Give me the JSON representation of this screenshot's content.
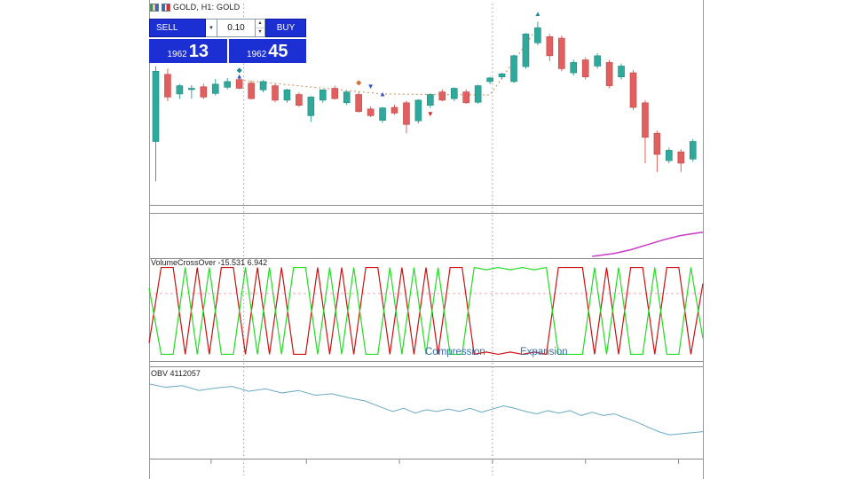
{
  "header": {
    "symbol_title": "GOLD, H1:  GOLD"
  },
  "icons": {
    "left_icon_1": "symbols-grid-icon",
    "left_icon_2": "candlestick-chart-icon"
  },
  "glyphs": {
    "up_arrow": "▲",
    "down_arrow": "▼"
  },
  "trade_panel": {
    "sell_label": "SELL",
    "buy_label": "BUY",
    "volume": "0.10",
    "sell_price": {
      "base": "1962",
      "pips": "13"
    },
    "buy_price": {
      "base": "1962",
      "pips": "45"
    }
  },
  "colors": {
    "bull": "#2fa99c",
    "bull_border": "#20877d",
    "bear": "#e15f5f",
    "bear_border": "#c04848",
    "panel_blue": "#1b2fd2",
    "vc_red": "#cc1111",
    "vc_green": "#22dd22",
    "vc_level": "#e3aebe",
    "obv_blue": "#6aaac8",
    "magenta": "#c93ac9",
    "trendline": "#cf9f6f",
    "annotation_blue": "#3a6fa8",
    "grid_gray": "#8c8c8c",
    "dotted_gray": "#999999"
  },
  "chart_data": [
    {
      "type": "candlestick",
      "symbol": "GOLD",
      "timeframe": "H1",
      "ylim": [
        1939,
        1973
      ],
      "vlines": [
        0.171,
        0.62
      ],
      "time_ticks": [
        0.112,
        0.284,
        0.452,
        0.62,
        0.788,
        0.956
      ],
      "trendline": {
        "style": "dotted",
        "points": [
          [
            7,
            1960.6
          ],
          [
            19,
            1957.9
          ],
          [
            28,
            1957.7
          ],
          [
            32,
            1970.8
          ]
        ]
      },
      "markers": [
        {
          "index": 7,
          "price": 1962.1,
          "glyph": "◆",
          "color": "#17889a"
        },
        {
          "index": 7,
          "price": 1960.9,
          "glyph": "▲",
          "color": "#2d55c8"
        },
        {
          "index": 17,
          "price": 1959.7,
          "glyph": "◆",
          "color": "#cf7030"
        },
        {
          "index": 18,
          "price": 1958.9,
          "glyph": "▼",
          "color": "#2d55c8"
        },
        {
          "index": 19,
          "price": 1957.5,
          "glyph": "▲",
          "color": "#2d55c8"
        },
        {
          "index": 23,
          "price": 1953.6,
          "glyph": "▼",
          "color": "#cc2222"
        },
        {
          "index": 32,
          "price": 1973.0,
          "glyph": "▲",
          "color": "#17889a"
        }
      ],
      "candles": [
        [
          1948.7,
          1963.3,
          1941.0,
          1962.3
        ],
        [
          1961.7,
          1962.8,
          1956.5,
          1957.3
        ],
        [
          1957.9,
          1959.8,
          1956.9,
          1959.5
        ],
        [
          1958.8,
          1959.6,
          1957.0,
          1959.0
        ],
        [
          1959.3,
          1959.9,
          1956.9,
          1957.3
        ],
        [
          1958.0,
          1960.8,
          1957.6,
          1959.8
        ],
        [
          1959.2,
          1961.0,
          1958.8,
          1960.3
        ],
        [
          1960.7,
          1961.3,
          1958.8,
          1959.0
        ],
        [
          1960.0,
          1960.5,
          1956.8,
          1957.0
        ],
        [
          1958.7,
          1960.6,
          1958.2,
          1960.3
        ],
        [
          1959.5,
          1959.9,
          1956.3,
          1956.7
        ],
        [
          1956.7,
          1958.9,
          1956.2,
          1958.7
        ],
        [
          1957.8,
          1958.2,
          1955.4,
          1955.7
        ],
        [
          1953.7,
          1957.5,
          1952.5,
          1957.3
        ],
        [
          1956.7,
          1958.8,
          1956.2,
          1958.7
        ],
        [
          1959.0,
          1959.5,
          1956.8,
          1957.0
        ],
        [
          1956.2,
          1958.5,
          1955.8,
          1958.3
        ],
        [
          1957.8,
          1958.2,
          1954.3,
          1954.5
        ],
        [
          1955.0,
          1955.5,
          1953.4,
          1953.7
        ],
        [
          1952.8,
          1955.4,
          1952.3,
          1955.2
        ],
        [
          1955.3,
          1955.8,
          1953.9,
          1954.2
        ],
        [
          1956.2,
          1956.6,
          1950.3,
          1952.0
        ],
        [
          1952.7,
          1956.9,
          1952.2,
          1956.7
        ],
        [
          1955.7,
          1958.0,
          1955.2,
          1957.8
        ],
        [
          1958.3,
          1958.8,
          1956.5,
          1956.7
        ],
        [
          1957.0,
          1959.2,
          1956.5,
          1959.0
        ],
        [
          1958.3,
          1958.8,
          1956.0,
          1956.2
        ],
        [
          1956.3,
          1959.7,
          1956.0,
          1959.5
        ],
        [
          1960.3,
          1961.2,
          1959.8,
          1961.0
        ],
        [
          1961.2,
          1962.0,
          1960.7,
          1961.8
        ],
        [
          1960.3,
          1965.5,
          1960.0,
          1965.3
        ],
        [
          1963.2,
          1969.7,
          1962.8,
          1969.5
        ],
        [
          1967.8,
          1971.9,
          1967.3,
          1970.7
        ],
        [
          1969.0,
          1969.5,
          1964.3,
          1965.3
        ],
        [
          1968.7,
          1969.2,
          1962.3,
          1962.8
        ],
        [
          1962.0,
          1964.5,
          1961.5,
          1964.0
        ],
        [
          1964.5,
          1965.0,
          1960.7,
          1961.2
        ],
        [
          1963.3,
          1965.8,
          1962.8,
          1965.3
        ],
        [
          1964.0,
          1964.5,
          1959.0,
          1959.5
        ],
        [
          1961.2,
          1963.8,
          1960.7,
          1963.3
        ],
        [
          1962.0,
          1962.5,
          1954.8,
          1955.3
        ],
        [
          1956.2,
          1956.7,
          1944.5,
          1949.5
        ],
        [
          1950.3,
          1950.8,
          1942.8,
          1946.2
        ],
        [
          1945.0,
          1947.5,
          1944.5,
          1947.0
        ],
        [
          1946.7,
          1947.2,
          1942.8,
          1944.5
        ],
        [
          1945.3,
          1949.2,
          1944.8,
          1948.7
        ]
      ]
    },
    {
      "type": "line",
      "name": "upper-indicator-band",
      "color": "#c93ac9",
      "points": [
        [
          0.8,
          1.0
        ],
        [
          0.84,
          0.93
        ],
        [
          0.87,
          0.84
        ],
        [
          0.9,
          0.72
        ],
        [
          0.93,
          0.6
        ],
        [
          0.96,
          0.5
        ],
        [
          1,
          0.42
        ]
      ]
    },
    {
      "type": "line",
      "name": "VolumeCrossOver",
      "values_label": "-15.531 6.942",
      "level": 0.38,
      "annotations": [
        {
          "text": "Compression"
        },
        {
          "text": "Expansion"
        }
      ],
      "series": [
        {
          "name": "down-volume",
          "color": "#cc1111",
          "values": [
            -0.7,
            0.95,
            0.95,
            -0.95,
            0.95,
            -0.95,
            0.95,
            0.95,
            -0.95,
            0.95,
            -0.95,
            0.95,
            -0.95,
            -0.95,
            0.95,
            -0.95,
            0.95,
            -0.95,
            0.95,
            0.95,
            -0.95,
            0.95,
            -0.95,
            0.95,
            -0.95,
            0.95,
            0.95,
            -0.95,
            -0.9,
            -0.95,
            -0.9,
            -0.95,
            -0.9,
            -0.95,
            0.95,
            0.95,
            0.95,
            -0.95,
            0.95,
            -0.95,
            0.95,
            0.95,
            -0.95,
            0.95,
            0.95,
            -0.95,
            0.6
          ]
        },
        {
          "name": "up-volume",
          "color": "#22dd22",
          "values": [
            0.5,
            -0.95,
            -0.95,
            0.95,
            -0.95,
            0.95,
            -0.95,
            -0.95,
            0.95,
            -0.95,
            0.95,
            -0.95,
            0.95,
            0.95,
            -0.95,
            0.95,
            -0.95,
            0.95,
            -0.95,
            -0.95,
            0.95,
            -0.95,
            0.95,
            -0.95,
            0.95,
            -0.95,
            -0.95,
            0.95,
            0.9,
            0.95,
            0.9,
            0.95,
            0.9,
            0.95,
            -0.95,
            -0.95,
            -0.95,
            0.95,
            -0.95,
            0.95,
            -0.95,
            -0.95,
            0.95,
            -0.95,
            -0.95,
            0.95,
            -0.6
          ]
        }
      ]
    },
    {
      "type": "line",
      "name": "OBV",
      "value": "4112057",
      "color": "#6aaac8",
      "points": [
        [
          0,
          0.12
        ],
        [
          0.03,
          0.16
        ],
        [
          0.06,
          0.14
        ],
        [
          0.09,
          0.2
        ],
        [
          0.12,
          0.17
        ],
        [
          0.15,
          0.15
        ],
        [
          0.18,
          0.21
        ],
        [
          0.21,
          0.18
        ],
        [
          0.24,
          0.23
        ],
        [
          0.27,
          0.2
        ],
        [
          0.3,
          0.26
        ],
        [
          0.33,
          0.24
        ],
        [
          0.36,
          0.29
        ],
        [
          0.39,
          0.33
        ],
        [
          0.42,
          0.41
        ],
        [
          0.44,
          0.46
        ],
        [
          0.46,
          0.42
        ],
        [
          0.48,
          0.48
        ],
        [
          0.5,
          0.44
        ],
        [
          0.52,
          0.46
        ],
        [
          0.54,
          0.43
        ],
        [
          0.56,
          0.46
        ],
        [
          0.58,
          0.42
        ],
        [
          0.6,
          0.47
        ],
        [
          0.62,
          0.43
        ],
        [
          0.64,
          0.39
        ],
        [
          0.66,
          0.42
        ],
        [
          0.68,
          0.46
        ],
        [
          0.7,
          0.49
        ],
        [
          0.72,
          0.45
        ],
        [
          0.74,
          0.48
        ],
        [
          0.76,
          0.45
        ],
        [
          0.78,
          0.51
        ],
        [
          0.8,
          0.47
        ],
        [
          0.82,
          0.51
        ],
        [
          0.84,
          0.49
        ],
        [
          0.86,
          0.54
        ],
        [
          0.88,
          0.59
        ],
        [
          0.9,
          0.65
        ],
        [
          0.92,
          0.71
        ],
        [
          0.94,
          0.75
        ],
        [
          0.97,
          0.73
        ],
        [
          1,
          0.71
        ]
      ]
    }
  ]
}
